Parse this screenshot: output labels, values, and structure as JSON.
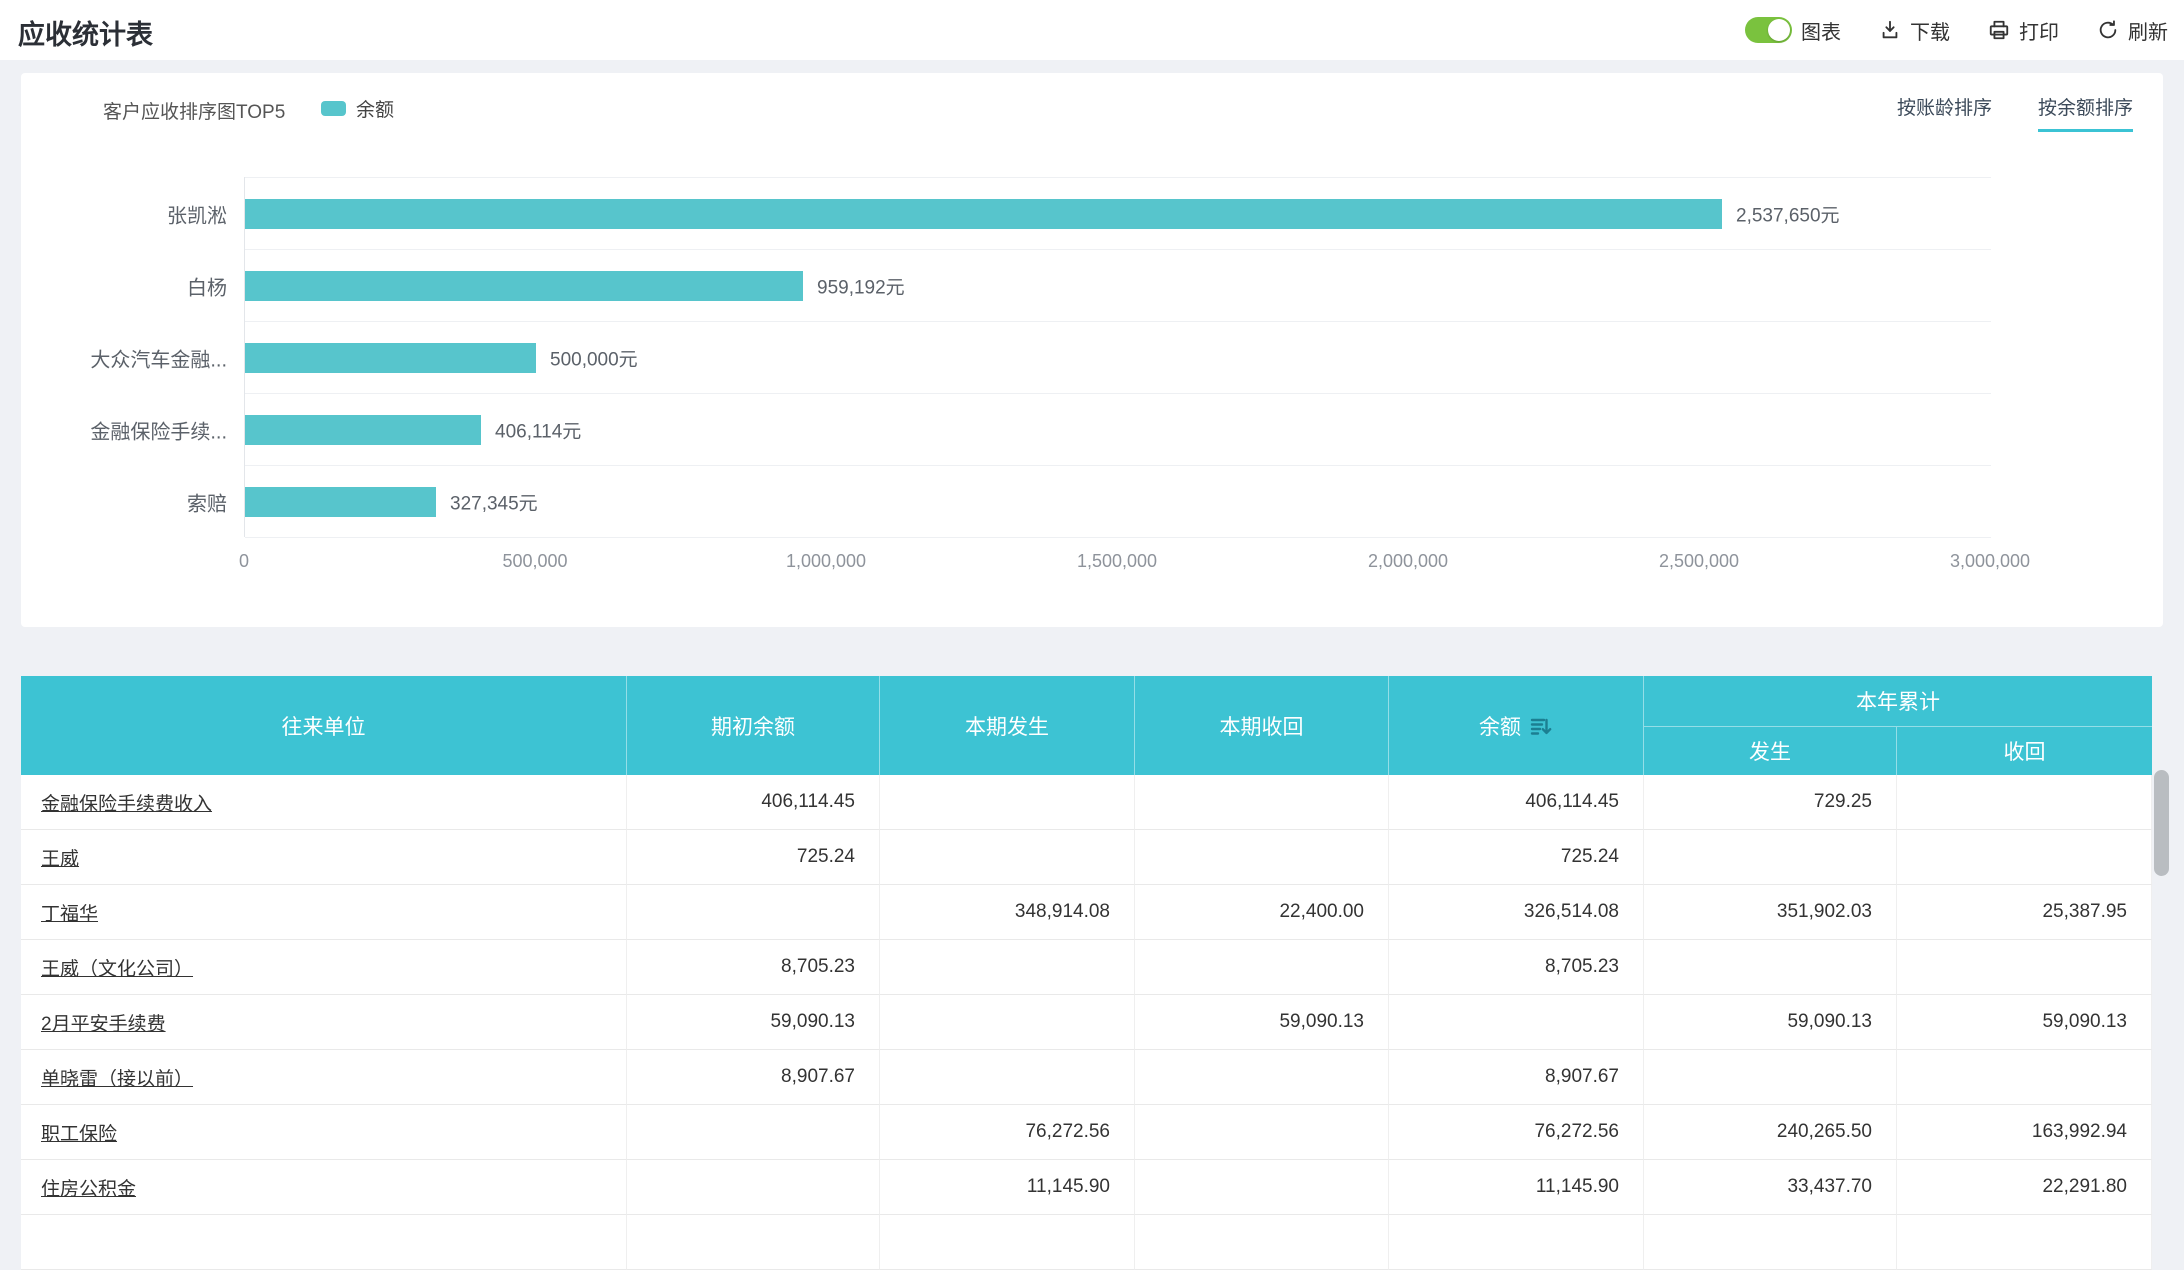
{
  "header": {
    "title": "应收统计表",
    "toggle_label": "图表",
    "toggle_on": true,
    "toggle_color": "#7ac23e",
    "download_label": "下载",
    "print_label": "打印",
    "refresh_label": "刷新"
  },
  "chart_tabs": [
    {
      "label": "按账龄排序",
      "active": false
    },
    {
      "label": "按余额排序",
      "active": true
    }
  ],
  "chart_data": {
    "type": "bar",
    "orientation": "horizontal",
    "title": "客户应收排序图TOP5",
    "legend": [
      {
        "label": "余额",
        "color": "#57c5cc"
      }
    ],
    "legend_position": "top-left",
    "categories": [
      "张凯淞",
      "白杨",
      "大众汽车金融...",
      "金融保险手续...",
      "索赔"
    ],
    "values": [
      2537650,
      959192,
      500000,
      406114,
      327345
    ],
    "value_labels": [
      "2,537,650元",
      "959,192元",
      "500,000元",
      "406,114元",
      "327,345元"
    ],
    "xlim": [
      0,
      3000000
    ],
    "x_ticks": [
      "0",
      "500,000",
      "1,000,000",
      "1,500,000",
      "2,000,000",
      "2,500,000",
      "3,000,000"
    ],
    "grid": "category split lines on, value gridlines off",
    "bar_color": "#57c5cc"
  },
  "table": {
    "headers": {
      "unit": "往来单位",
      "opening_balance": "期初余额",
      "current_occurred": "本期发生",
      "current_received": "本期收回",
      "balance": "余额",
      "year_total": "本年累计",
      "year_occurred": "发生",
      "year_received": "收回"
    },
    "header_color": "#3dc3d3",
    "rows": [
      [
        "金融保险手续费收入",
        "406,114.45",
        "",
        "",
        "406,114.45",
        "729.25",
        ""
      ],
      [
        "王威",
        "725.24",
        "",
        "",
        "725.24",
        "",
        ""
      ],
      [
        "丁福华",
        "",
        "348,914.08",
        "22,400.00",
        "326,514.08",
        "351,902.03",
        "25,387.95"
      ],
      [
        "王威（文化公司）",
        "8,705.23",
        "",
        "",
        "8,705.23",
        "",
        ""
      ],
      [
        "2月平安手续费",
        "59,090.13",
        "",
        "59,090.13",
        "",
        "59,090.13",
        "59,090.13"
      ],
      [
        "单晓雷（接以前）",
        "8,907.67",
        "",
        "",
        "8,907.67",
        "",
        ""
      ],
      [
        "职工保险",
        "",
        "76,272.56",
        "",
        "76,272.56",
        "240,265.50",
        "163,992.94"
      ],
      [
        "住房公积金",
        "",
        "11,145.90",
        "",
        "11,145.90",
        "33,437.70",
        "22,291.80"
      ],
      [
        "",
        "",
        "",
        "",
        "",
        "",
        ""
      ]
    ]
  }
}
